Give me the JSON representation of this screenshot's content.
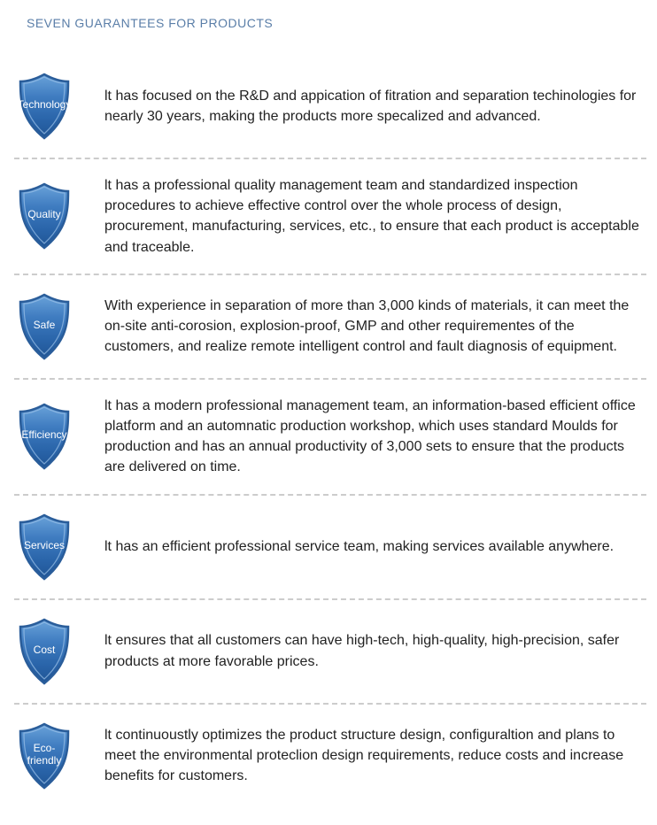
{
  "title": "SEVEN GUARANTEES FOR PRODUCTS",
  "shield_colors": {
    "stroke": "#3a6da8",
    "fill_top": "#4a87c8",
    "fill_mid": "#2d6bb0",
    "fill_bottom": "#1a4f8f",
    "label_color": "#ffffff"
  },
  "items": [
    {
      "label": "Technology",
      "description": "lt has focused on the R&D and appication of fitration and separation techinologies for nearly 30 years, making the products more specalized and advanced."
    },
    {
      "label": "Quality",
      "description": "lt has a professional quality management team and standardized inspection procedures to achieve effective control over the whole process of design, procurement, manufacturing, services, etc., to ensure that each product is acceptable and traceable."
    },
    {
      "label": "Safe",
      "description": "With experience in separation of more than 3,000 kinds of materials, it can meet the on-site anti-corosion, explosion-proof, GMP and other requirementes of the customers, and realize remote intelligent control and fault diagnosis of equipment."
    },
    {
      "label": "Efficiency",
      "description": "lt has a modern professional management team, an information-based efficient office platform and an automnatic production workshop, which uses standard Moulds for production and has an annual productivity of 3,000 sets to ensure that the products are delivered on time."
    },
    {
      "label": "Services",
      "description": "lt has an efficient professional service team, making services available anywhere."
    },
    {
      "label": "Cost",
      "description": "lt ensures that all customers can have high-tech, high-quality, high-precision, safer products at more favorable prices."
    },
    {
      "label": "Eco-friendly",
      "description": "lt continuoustly optimizes the product structure design, configuraltion and plans to meet the environmental proteclion design requirements, reduce costs and increase benefits for customers."
    }
  ]
}
